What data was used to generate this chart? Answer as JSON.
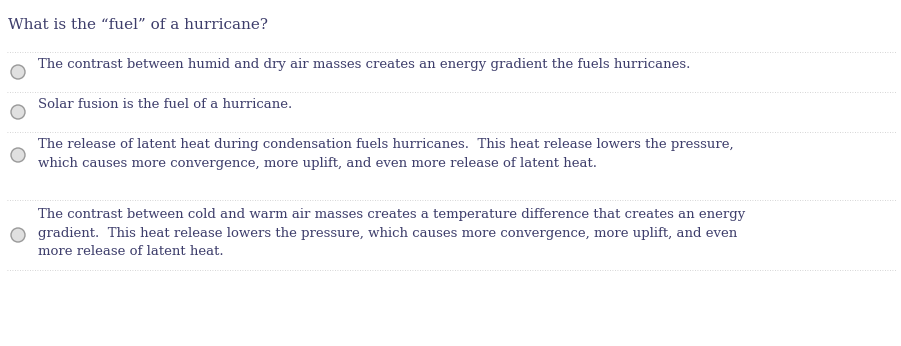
{
  "title": "What is the “fuel” of a hurricane?",
  "title_color": "#3d3d6b",
  "title_fontsize": 11.0,
  "bg_color": "#ffffff",
  "option_color": "#3d3d6b",
  "option_fontsize": 9.5,
  "divider_color": "#c8c8c8",
  "circle_edge_color": "#999999",
  "circle_face_color": "#e0e0e0",
  "options": [
    "The contrast between humid and dry air masses creates an energy gradient the fuels hurricanes.",
    "Solar fusion is the fuel of a hurricane.",
    "The release of latent heat during condensation fuels hurricanes.  This heat release lowers the pressure,\nwhich causes more convergence, more uplift, and even more release of latent heat.",
    "The contrast between cold and warm air masses creates a temperature difference that creates an energy\ngradient.  This heat release lowers the pressure, which causes more convergence, more uplift, and even\nmore release of latent heat."
  ],
  "fig_width": 9.01,
  "fig_height": 3.46,
  "dpi": 100
}
